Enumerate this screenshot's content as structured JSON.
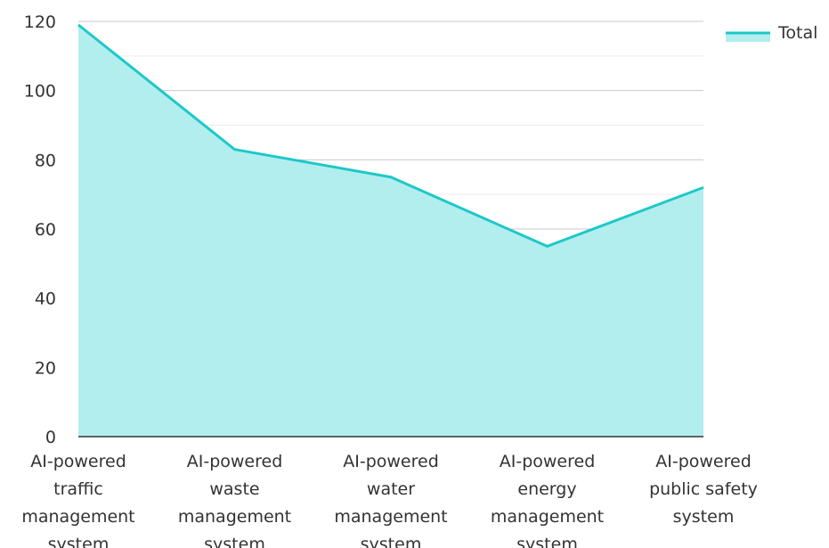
{
  "chart_data": {
    "type": "area",
    "categories": [
      "AI-powered traffic management system",
      "AI-powered waste management system",
      "AI-powered water management system",
      "AI-powered energy management system",
      "AI-powered public safety system"
    ],
    "series": [
      {
        "name": "Total",
        "color": "#1ec8c8",
        "fill": "#b2eeee",
        "values": [
          119,
          83,
          75,
          55,
          72
        ]
      }
    ],
    "ylim": [
      0,
      120
    ],
    "yticks": [
      0,
      20,
      40,
      60,
      80,
      100,
      120
    ],
    "minor_yticks": [
      10,
      30,
      50,
      70,
      90,
      110
    ],
    "grid": true,
    "legend": "top-right"
  }
}
